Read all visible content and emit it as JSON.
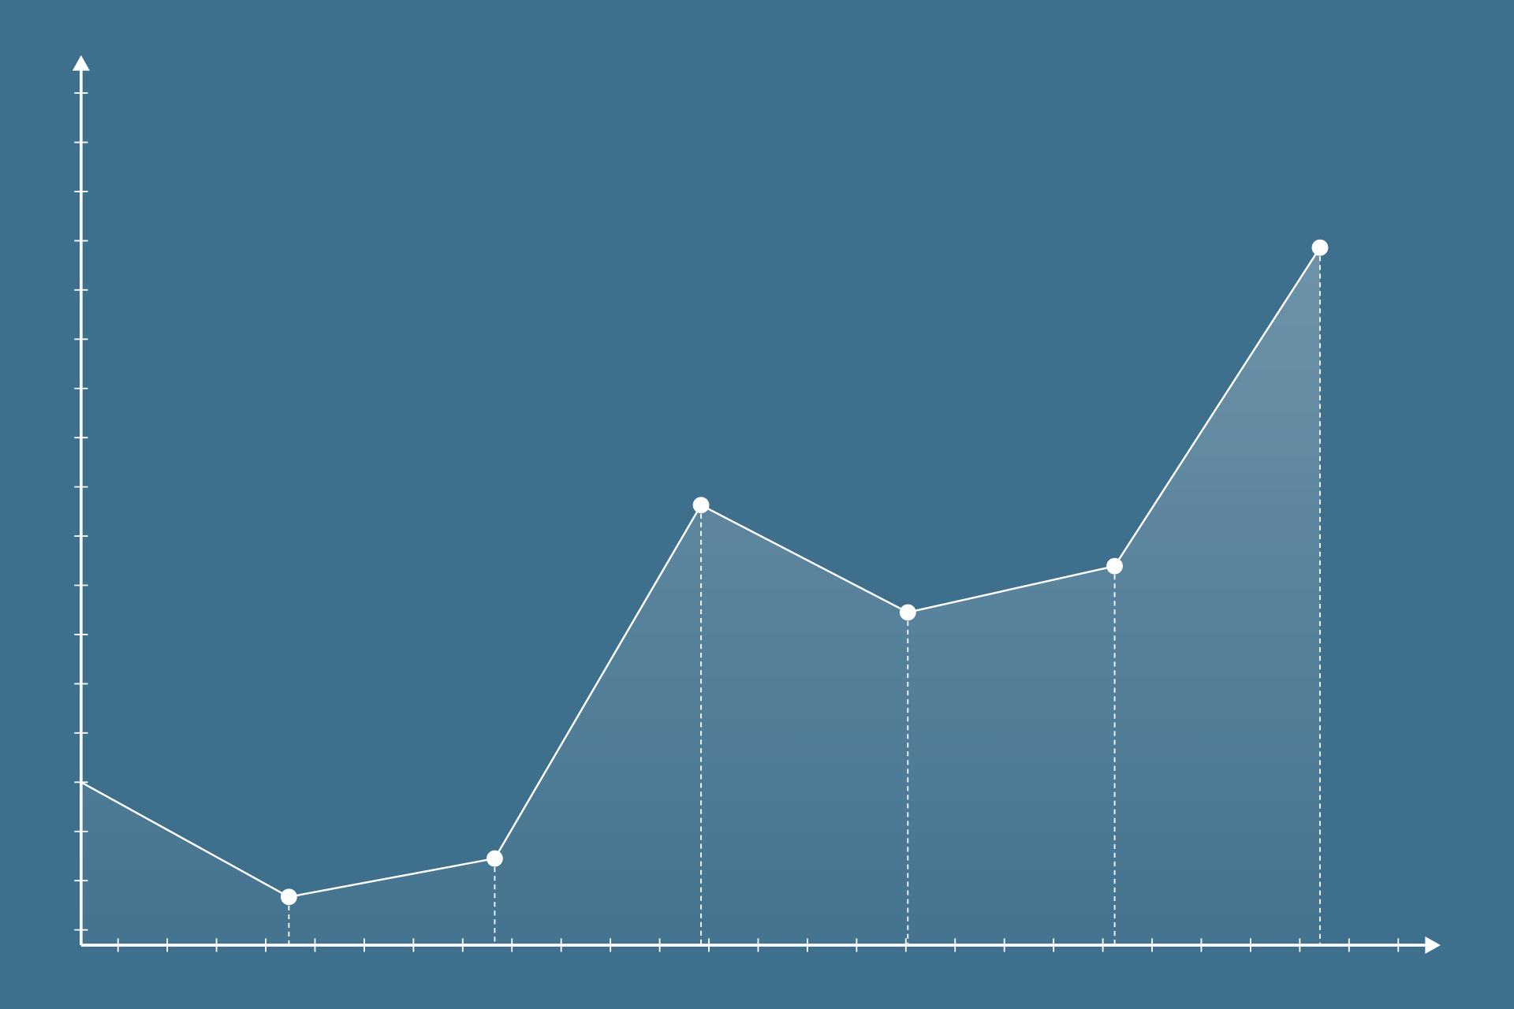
{
  "chart_data": {
    "type": "area",
    "x": [
      0.25,
      4.47,
      8.65,
      12.84,
      17.04,
      21.24,
      25.41
    ],
    "values": [
      4,
      1.67,
      2.45,
      9.63,
      7.45,
      8.39,
      14.86
    ],
    "color": "#ffffff",
    "xlim": [
      0.25,
      27.86
    ],
    "xticks": [
      1,
      2,
      3,
      4,
      5,
      6,
      7,
      8,
      9,
      10,
      11,
      12,
      13,
      14,
      15,
      16,
      17,
      18,
      19,
      20,
      21,
      22,
      23,
      24,
      25,
      26,
      27
    ],
    "ylim": [
      0.69,
      18.77
    ],
    "yticks": [
      1,
      2,
      3,
      4,
      5,
      6,
      7,
      8,
      9,
      10,
      11,
      12,
      13,
      14,
      15,
      16,
      17,
      18
    ],
    "drop_lines": true,
    "markers": true
  }
}
